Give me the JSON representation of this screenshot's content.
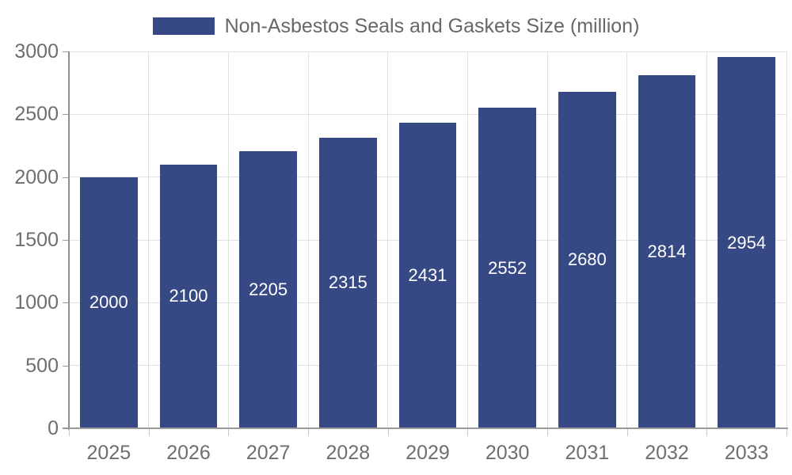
{
  "legend": {
    "label": "Non-Asbestos Seals and Gaskets Size (million)"
  },
  "chart_data": {
    "type": "bar",
    "title": "",
    "series_name": "Non-Asbestos Seals and Gaskets Size (million)",
    "categories": [
      "2025",
      "2026",
      "2027",
      "2028",
      "2029",
      "2030",
      "2031",
      "2032",
      "2033"
    ],
    "values": [
      2000,
      2100,
      2205,
      2315,
      2431,
      2552,
      2680,
      2814,
      2954
    ],
    "value_labels_shown": true,
    "xlabel": "",
    "ylabel": "",
    "ylim": [
      0,
      3000
    ],
    "yticks": [
      0,
      500,
      1000,
      1500,
      2000,
      2500,
      3000
    ],
    "grid": true,
    "legend_position": "top-center",
    "colors": {
      "bar": "#364985",
      "grid": "#e0e0e0",
      "axis": "#9a9a9a",
      "tick_label": "#6e6e6e",
      "legend_text": "#676767",
      "value_label": "#ffffff",
      "background": "#ffffff"
    }
  }
}
